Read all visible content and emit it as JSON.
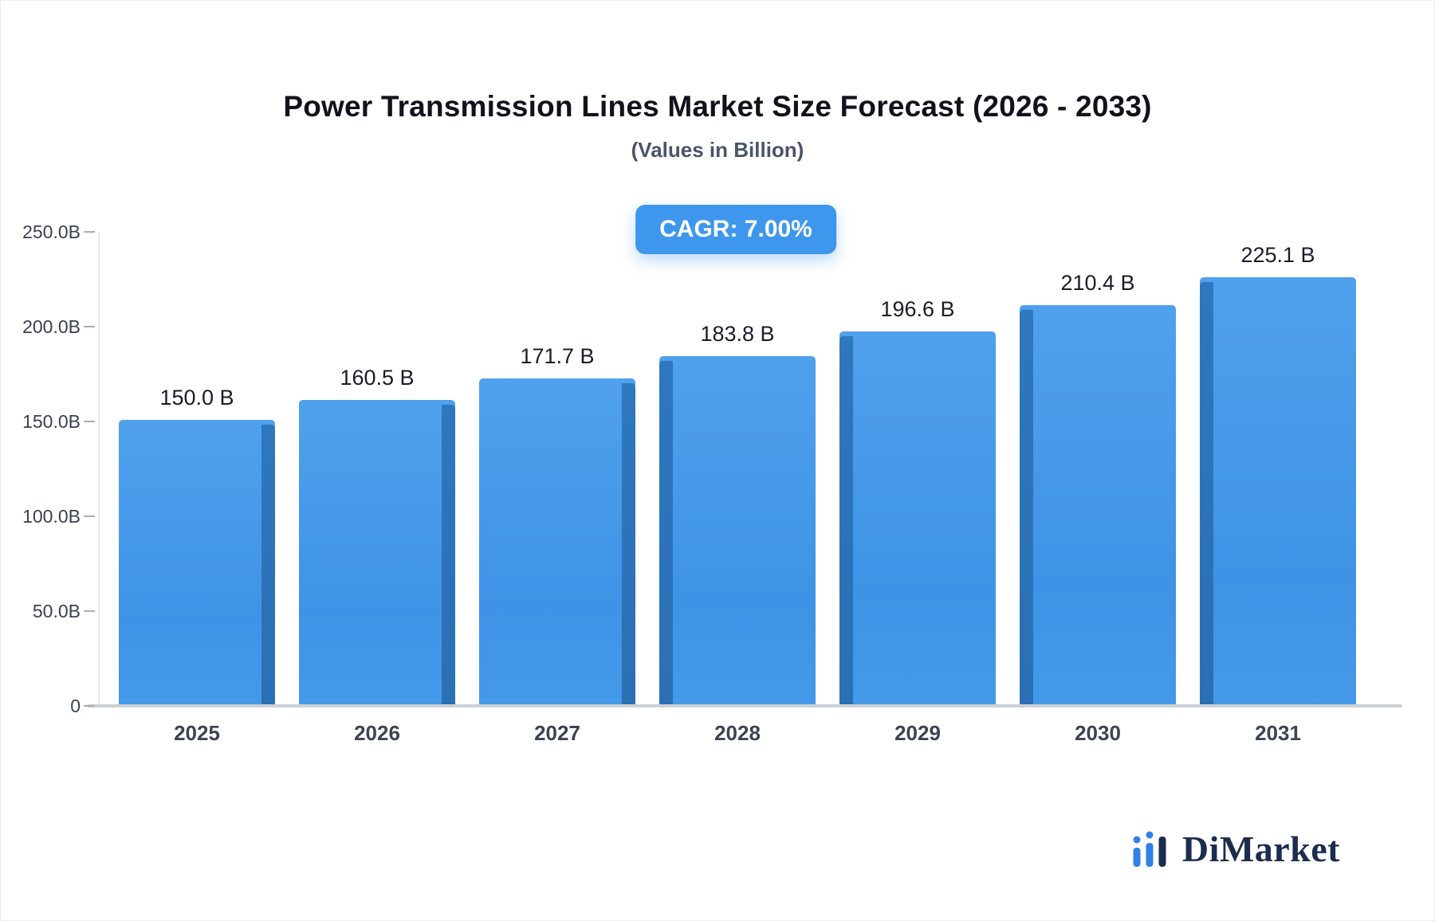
{
  "badge": {
    "label": "CAGR: 7.00%"
  },
  "logo": {
    "text": "DiMarket"
  },
  "colors": {
    "bar": "#3f95e7",
    "bar_side": "#2d72ba",
    "badge_bg": "#3e97ed",
    "logo_icon": "#2f80e8",
    "logo_text": "#1c2c4e",
    "axis_text": "#394150"
  },
  "chart_data": {
    "type": "bar",
    "title": "Power Transmission Lines Market Size Forecast (2026 - 2033)",
    "subtitle": "(Values in Billion)",
    "categories": [
      "2025",
      "2026",
      "2027",
      "2028",
      "2029",
      "2030",
      "2031"
    ],
    "values": [
      150.0,
      160.5,
      171.7,
      183.8,
      196.6,
      210.4,
      225.1
    ],
    "value_labels": [
      "150.0 B",
      "160.5 B",
      "171.7 B",
      "183.8 B",
      "196.6 B",
      "210.4 B",
      "225.1 B"
    ],
    "xlabel": "",
    "ylabel": "",
    "ylim": [
      0,
      250
    ],
    "ytick_values": [
      250,
      200,
      150,
      100,
      50,
      0
    ],
    "ytick_labels": [
      "250.0B",
      "200.0B",
      "150.0B",
      "100.0B",
      "50.0B",
      "0"
    ],
    "grid": false,
    "legend": false
  }
}
